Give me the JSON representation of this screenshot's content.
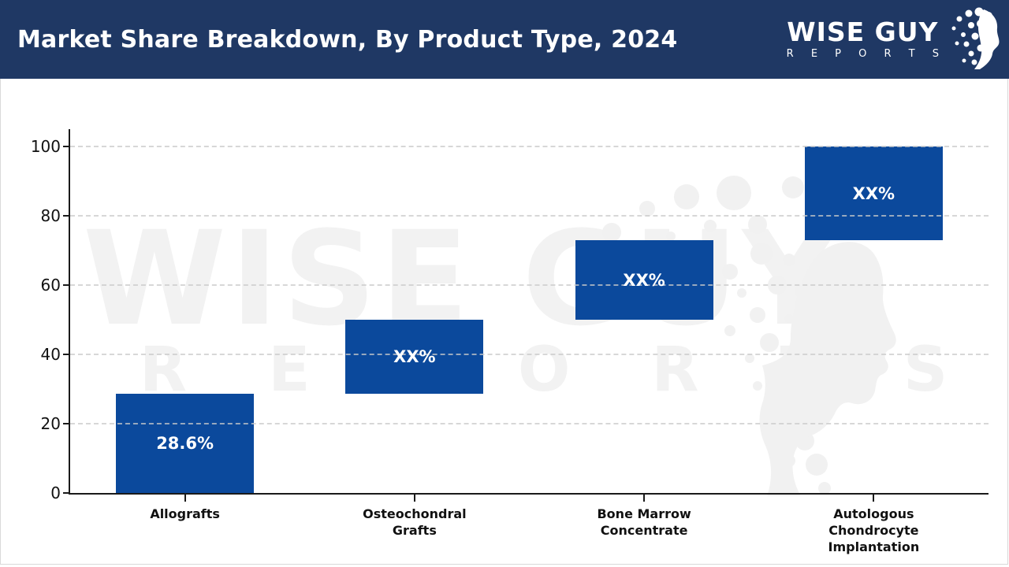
{
  "header": {
    "title": "Market Share Breakdown, By Product Type, 2024",
    "bg_color": "#1f3864",
    "logo": {
      "line1": "WISE GUY",
      "line2": "R E P O R T S"
    }
  },
  "watermark": {
    "line1": "WISE GUY",
    "line2": "R E P O R T S"
  },
  "chart_data": {
    "type": "bar",
    "subtype": "floating-waterfall",
    "title": "Market Share Breakdown, By Product Type, 2024",
    "xlabel": "",
    "ylabel": "",
    "categories": [
      "Allografts",
      "Osteochondral\nGrafts",
      "Bone Marrow\nConcentrate",
      "Autologous\nChondrocyte\nImplantation"
    ],
    "bars": [
      {
        "start": 0,
        "end": 28.6,
        "label": "28.6%"
      },
      {
        "start": 28.6,
        "end": 50.0,
        "label": "XX%"
      },
      {
        "start": 50.0,
        "end": 72.9,
        "label": "XX%"
      },
      {
        "start": 72.9,
        "end": 100.0,
        "label": "XX%"
      }
    ],
    "yticks": [
      0,
      20,
      40,
      60,
      80,
      100
    ],
    "ylim": [
      0,
      105
    ],
    "grid": true,
    "grid_style": "dashed",
    "legend": "none",
    "bar_color": "#0b499c",
    "bar_label_color": "#ffffff",
    "axis_color": "#1a1a1a"
  }
}
